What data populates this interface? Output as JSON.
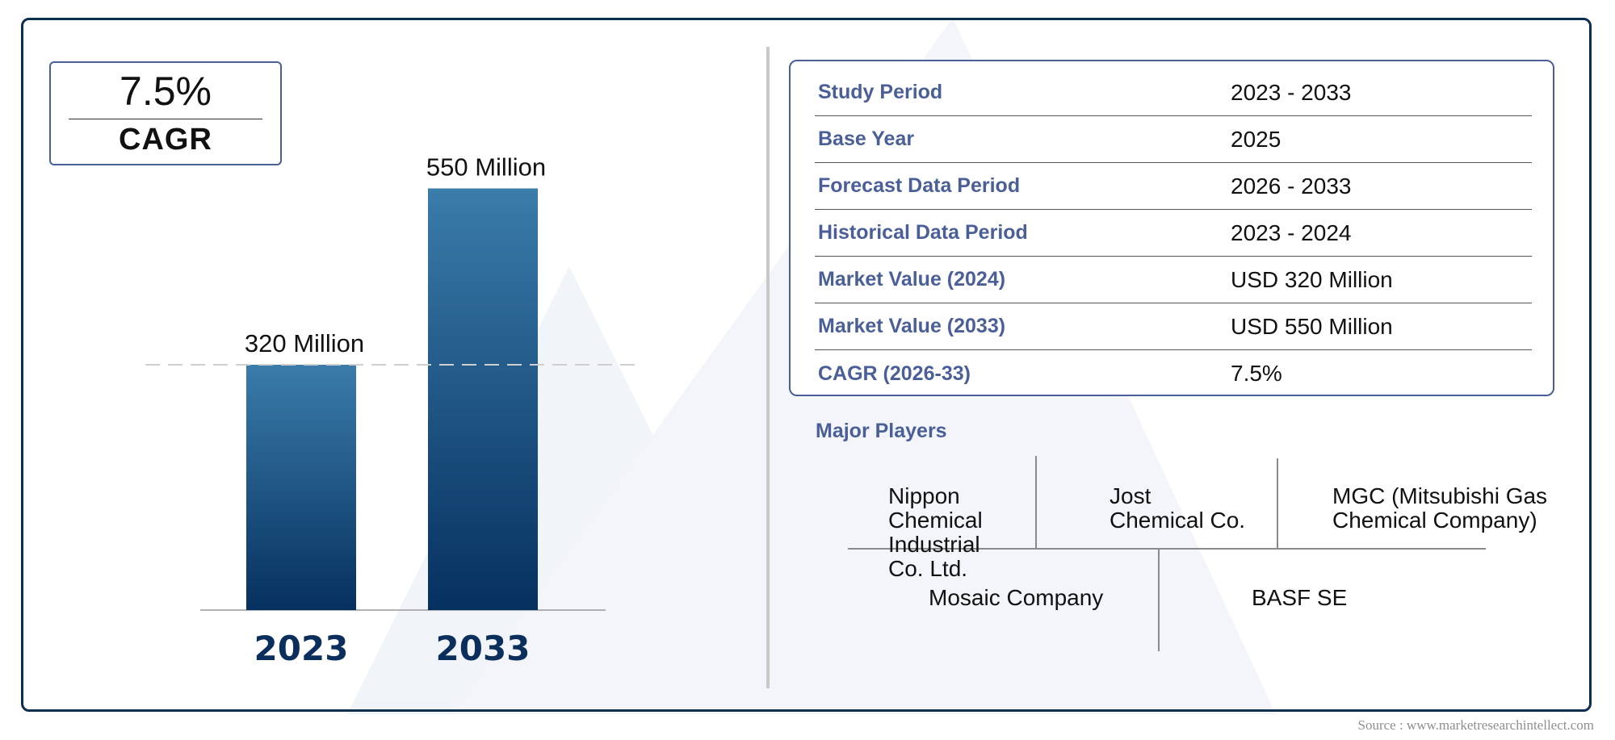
{
  "cagr_box": {
    "value": "7.5%",
    "label": "CAGR"
  },
  "chart_data": {
    "type": "bar",
    "categories": [
      "2023",
      "2033"
    ],
    "values": [
      320,
      550
    ],
    "value_labels": [
      "320 Million",
      "550 Million"
    ],
    "title": "",
    "xlabel": "",
    "ylabel": "",
    "ylim": [
      0,
      600
    ],
    "grid": false,
    "reference_line_at": 320,
    "colors": {
      "bar_top": "#3a7caa",
      "bar_bottom": "#06305f",
      "category_text": "#0b2f5c"
    }
  },
  "info_table": [
    {
      "key": "Study Period",
      "value": "2023 - 2033"
    },
    {
      "key": "Base Year",
      "value": "2025"
    },
    {
      "key": "Forecast Data Period",
      "value": "2026 - 2033"
    },
    {
      "key": "Historical Data Period",
      "value": "2023 - 2024"
    },
    {
      "key": "Market Value (2024)",
      "value": "USD 320 Million"
    },
    {
      "key": "Market Value (2033)",
      "value": "USD 550 Million"
    },
    {
      "key": "CAGR (2026-33)",
      "value": "7.5%"
    }
  ],
  "major_players": {
    "title": "Major Players",
    "players": [
      "Nippon\nChemical\nIndustrial\nCo. Ltd.",
      "Jost\nChemical Co.",
      "MGC (Mitsubishi Gas\nChemical Company)",
      "Mosaic Company",
      "BASF SE"
    ]
  },
  "source": "Source : www.marketresearchintellect.com",
  "colors": {
    "frame": "#0d2f4f",
    "accent": "#4a5f98",
    "watermark": "#eef1f7"
  }
}
